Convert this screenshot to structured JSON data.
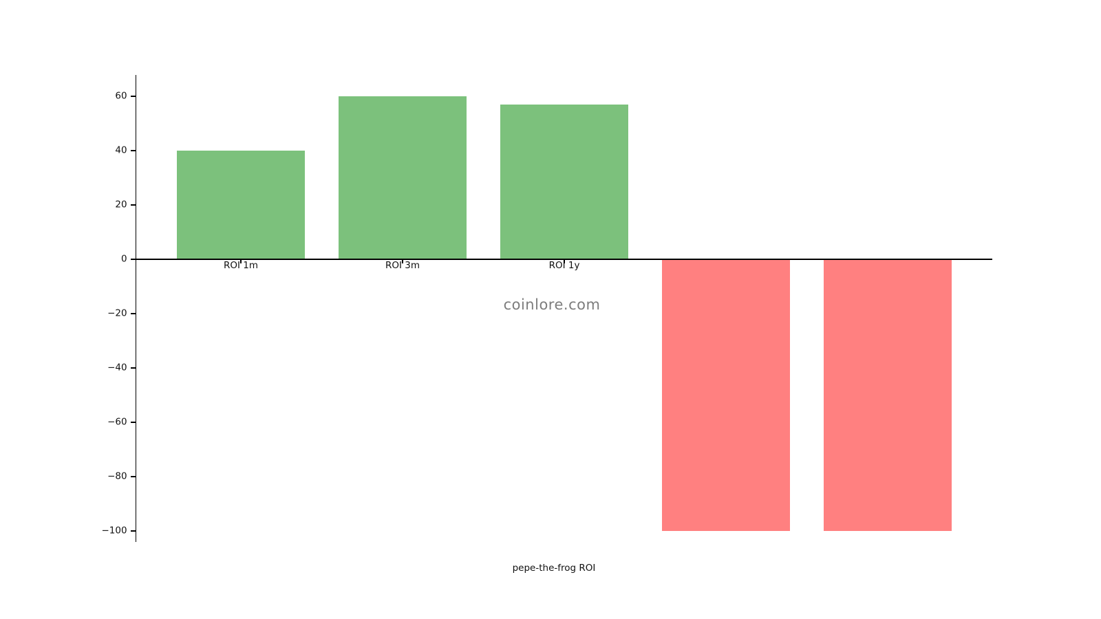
{
  "watermark_text": "coinlore.com",
  "axis_title": "pepe-the-frog ROI",
  "chart_data": {
    "type": "bar",
    "title": "pepe-the-frog ROI",
    "watermark": "coinlore.com",
    "categories": [
      "ROI 1m",
      "ROI 3m",
      "ROI 1y",
      "",
      ""
    ],
    "values": [
      40,
      60,
      57,
      -100,
      -100
    ],
    "yticks": [
      60,
      40,
      20,
      0,
      -20,
      -40,
      -60,
      -80,
      -100
    ],
    "ylim": [
      -104,
      68
    ],
    "xlabel": "pepe-the-frog ROI",
    "ylabel": "",
    "grid": false,
    "legend": "none",
    "colors": {
      "positive_bar": "#7cc17c",
      "negative_bar": "#ff8080",
      "axis": "#000000",
      "tick_text": "#111111",
      "watermark": "#7d7d7d"
    }
  }
}
